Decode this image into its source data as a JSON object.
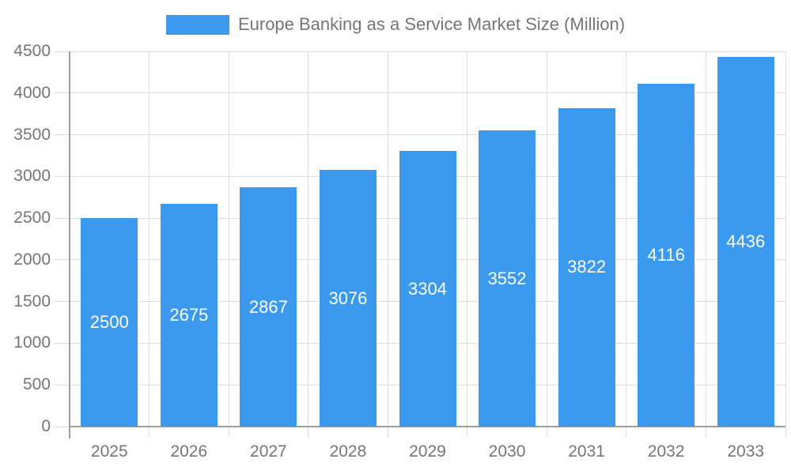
{
  "chart_data": {
    "type": "bar",
    "title": "Europe Banking as a Service Market Size (Million)",
    "categories": [
      "2025",
      "2026",
      "2027",
      "2028",
      "2029",
      "2030",
      "2031",
      "2032",
      "2033"
    ],
    "values": [
      2500,
      2675,
      2867,
      3076,
      3304,
      3552,
      3822,
      4116,
      4436
    ],
    "xlabel": "",
    "ylabel": "",
    "ylim": [
      0,
      4500
    ],
    "ytick_step": 500,
    "grid": true,
    "legend_position": "top-center",
    "value_labels": "inside-center",
    "colors": {
      "bar": "#3b99ee",
      "bar_label": "#ffffff",
      "axis_text": "#757575",
      "axis_line": "#9e9e9e",
      "gridline": "#dedede",
      "background": "#ffffff"
    }
  }
}
